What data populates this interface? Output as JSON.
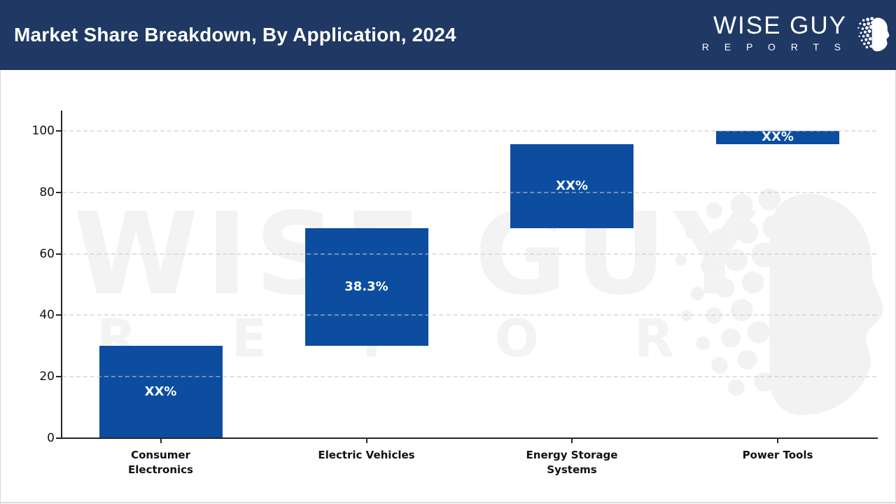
{
  "header": {
    "title": "Market Share Breakdown, By Application, 2024",
    "logo": {
      "line1": "WISE GUY",
      "line2": "R E P O R T S"
    }
  },
  "watermark": {
    "line1": "WISE GUY",
    "line2": "R E P O R T S"
  },
  "colors": {
    "header_bg": "#1f3864",
    "bar": "#0c4da0",
    "axis": "#262626",
    "gridline": "#d9d9d9",
    "watermark": "#f3f3f3",
    "bar_label_text": "#ffffff"
  },
  "chart_data": {
    "type": "bar",
    "subtype": "floating-segment-breakdown",
    "title": "Market Share Breakdown, By Application, 2024",
    "xlabel": "",
    "ylabel": "",
    "ylim": [
      0,
      106
    ],
    "yticks": [
      0,
      20,
      40,
      60,
      80,
      100
    ],
    "grid": "dashed-horizontal",
    "legend": "none",
    "categories": [
      "Consumer\nElectronics",
      "Electric Vehicles",
      "Energy Storage\nSystems",
      "Power Tools"
    ],
    "bars": [
      {
        "category": "Consumer Electronics",
        "start": 0,
        "end": 30.1,
        "value": 30.1,
        "label": "XX%"
      },
      {
        "category": "Electric Vehicles",
        "start": 30.1,
        "end": 68.4,
        "value": 38.3,
        "label": "38.3%"
      },
      {
        "category": "Energy Storage Systems",
        "start": 68.4,
        "end": 95.7,
        "value": 27.3,
        "label": "XX%"
      },
      {
        "category": "Power Tools",
        "start": 95.7,
        "end": 100,
        "value": 4.3,
        "label": "XX%"
      }
    ]
  }
}
